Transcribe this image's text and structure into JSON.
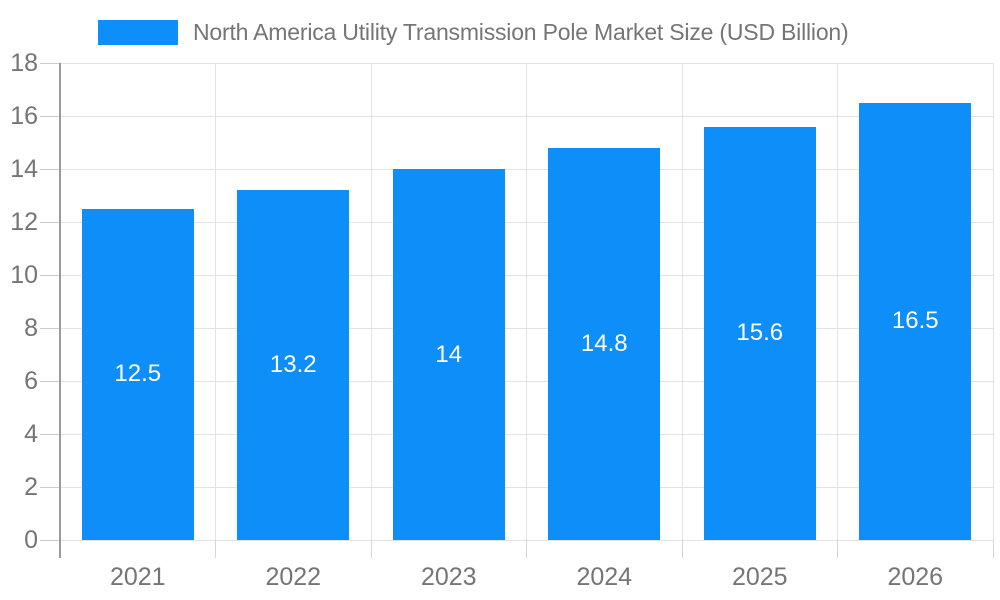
{
  "legend": {
    "label": "North America Utility Transmission Pole Market Size (USD Billion)",
    "swatch_color": "#0d8ef8"
  },
  "chart_data": {
    "type": "bar",
    "title": "North America Utility Transmission Pole Market Size (USD Billion)",
    "categories": [
      "2021",
      "2022",
      "2023",
      "2024",
      "2025",
      "2026"
    ],
    "values": [
      12.5,
      13.2,
      14,
      14.8,
      15.6,
      16.5
    ],
    "value_labels": [
      "12.5",
      "13.2",
      "14",
      "14.8",
      "15.6",
      "16.5"
    ],
    "xlabel": "",
    "ylabel": "",
    "ylim": [
      0,
      18
    ],
    "y_ticks": [
      0,
      2,
      4,
      6,
      8,
      10,
      12,
      14,
      16,
      18
    ],
    "grid": true,
    "legend_position": "top",
    "bar_color": "#0d8ef8",
    "data_label_color": "#ffffff"
  },
  "colors": {
    "bar": "#0d8ef8",
    "gridline": "#e3e3e3",
    "axis_line": "#9b9b9b",
    "text": "#757575",
    "background": "#ffffff"
  }
}
